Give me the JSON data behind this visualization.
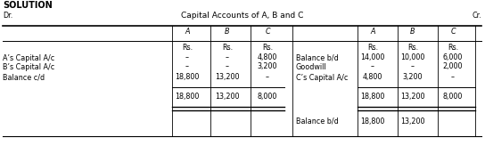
{
  "title": "Capital Accounts of A, B and C",
  "dr_label": "Dr.",
  "cr_label": "Cr.",
  "solution_label": "SOLUTION",
  "left_headers": [
    "",
    "A",
    "B",
    "C"
  ],
  "right_headers": [
    "",
    "A",
    "B",
    "C"
  ],
  "left_rows": [
    [
      "A’s Capital A/c",
      "–",
      "–",
      "4,800"
    ],
    [
      "B’s Capital A/c",
      "–",
      "–",
      "3,200"
    ],
    [
      "Balance c/d",
      "18,800",
      "13,200",
      "–"
    ]
  ],
  "right_rows": [
    [
      "Balance b/d",
      "14,000",
      "10,000",
      "6,000"
    ],
    [
      "Goodwill",
      "–",
      "–",
      "2,000"
    ],
    [
      "C’s Capital A/c",
      "4,800",
      "3,200",
      "–"
    ]
  ],
  "left_total": [
    "18,800",
    "13,200",
    "8,000"
  ],
  "right_total": [
    "18,800",
    "13,200",
    "8,000"
  ],
  "right_balance": [
    "Balance b/d",
    "18,800",
    "13,200",
    ""
  ],
  "bg_color": "#ffffff",
  "fs_main": 5.8,
  "fs_title": 6.5,
  "fs_solution": 7.0
}
